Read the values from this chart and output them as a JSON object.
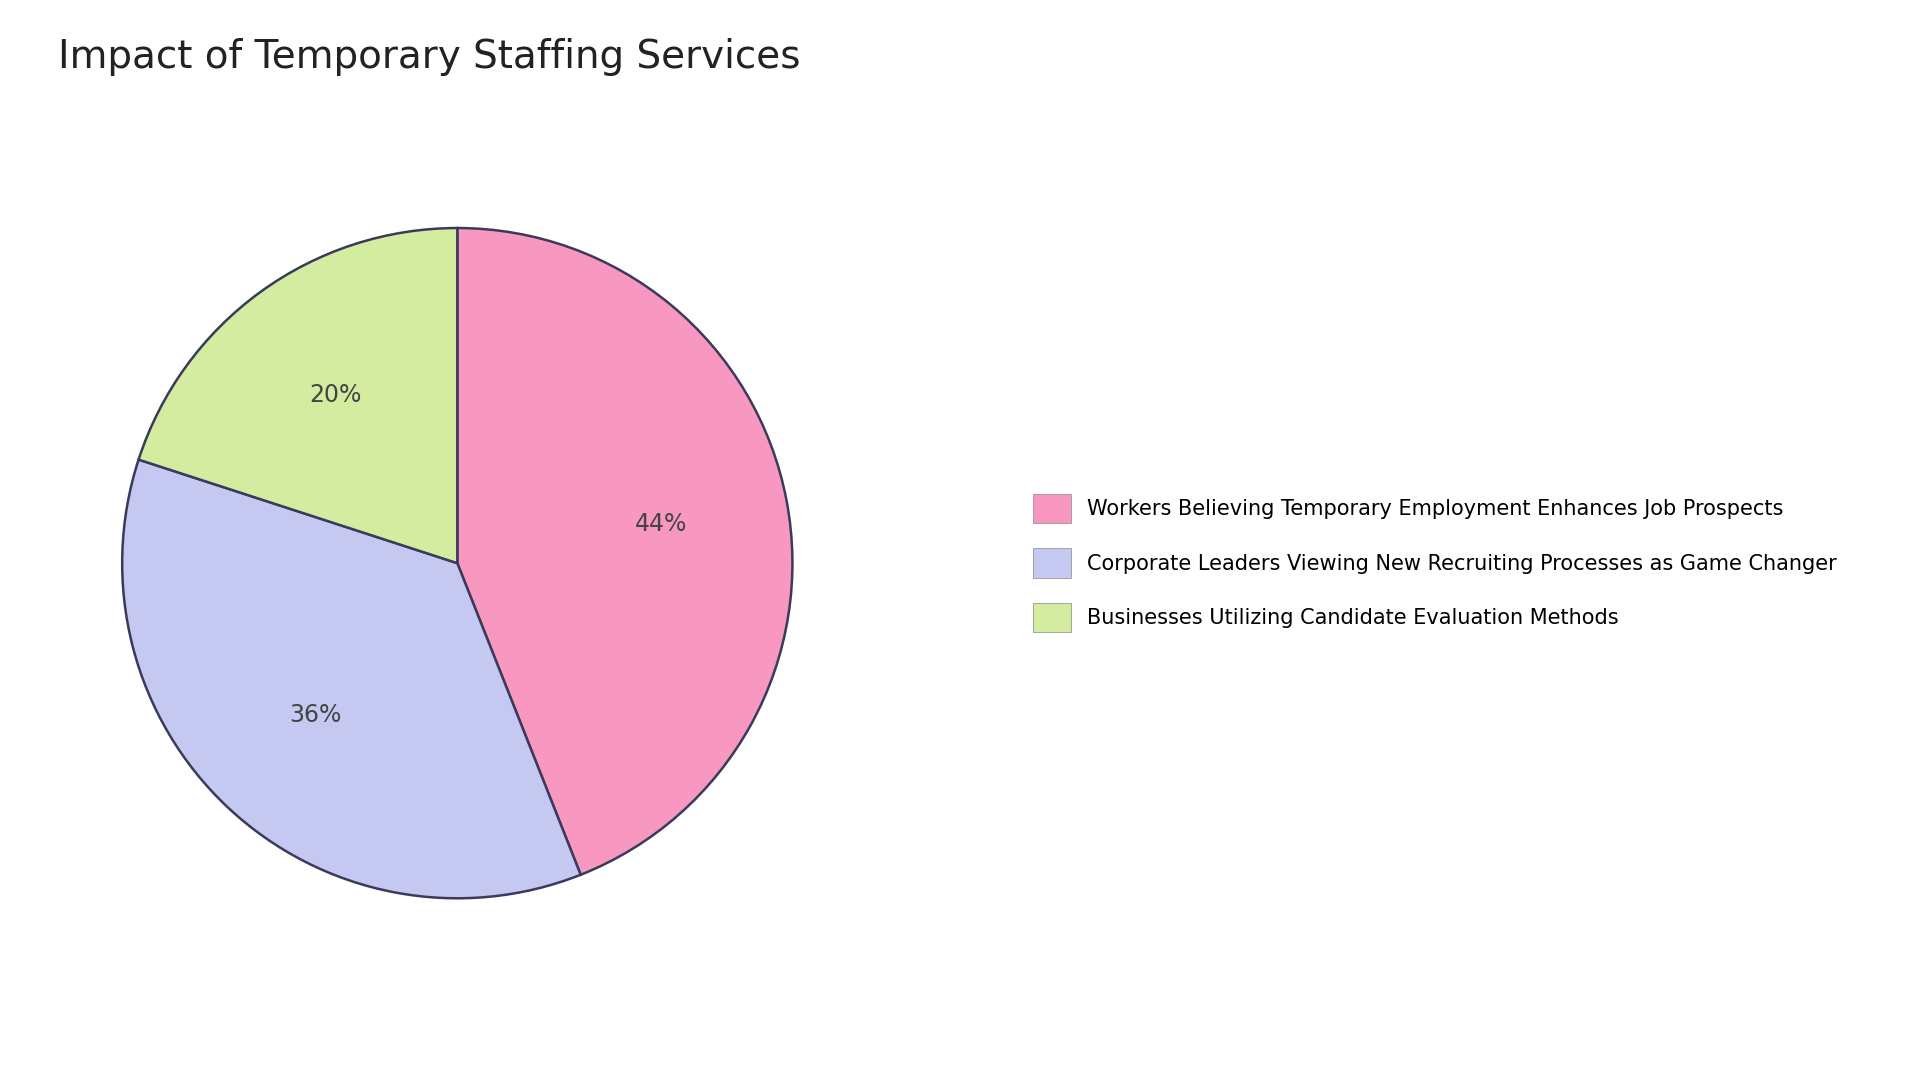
{
  "title": "Impact of Temporary Staffing Services",
  "slices": [
    44,
    36,
    20
  ],
  "labels": [
    "44%",
    "36%",
    "20%"
  ],
  "colors": [
    "#F898C0",
    "#C5C8F0",
    "#D4ECA0"
  ],
  "edge_color": "#3A3A5C",
  "legend_labels": [
    "Workers Believing Temporary Employment Enhances Job Prospects",
    "Corporate Leaders Viewing New Recruiting Processes as Game Changer",
    "Businesses Utilizing Candidate Evaluation Methods"
  ],
  "start_angle": 90,
  "title_fontsize": 28,
  "label_fontsize": 17,
  "legend_fontsize": 15,
  "background_color": "#FFFFFF",
  "text_color": "#444444"
}
